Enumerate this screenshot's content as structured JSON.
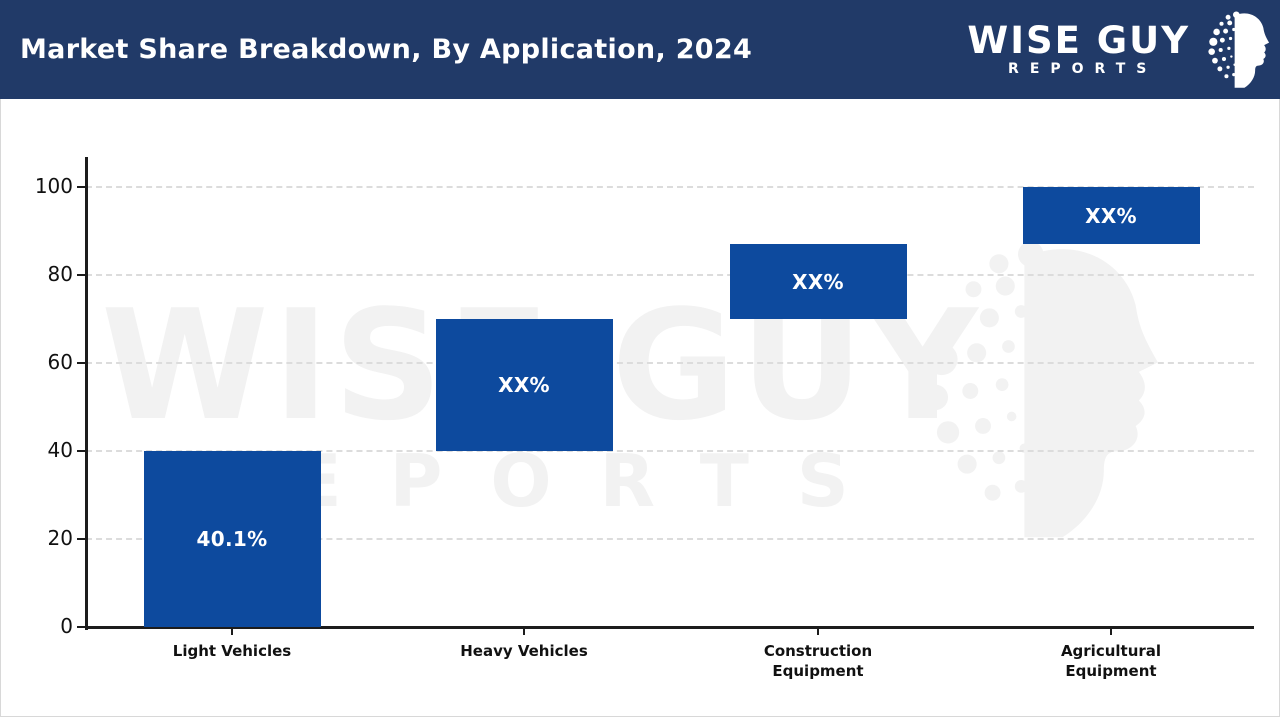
{
  "header": {
    "title": "Market Share Breakdown, By Application, 2024",
    "bg_color": "#213a68",
    "logo": {
      "line1": "WISE GUY",
      "line2": "REPORTS"
    }
  },
  "watermark": {
    "line1": "WISE GUY",
    "line2": "REPORTS",
    "color": "#f2f2f2"
  },
  "chart_data": {
    "type": "bar",
    "subtype": "waterfall",
    "title": "Market Share Breakdown, By Application, 2024",
    "categories": [
      "Light Vehicles",
      "Heavy Vehicles",
      "Construction Equipment",
      "Agricultural Equipment"
    ],
    "segments": [
      {
        "category": "Light Vehicles",
        "start": 0,
        "end": 40.1,
        "label": "40.1%"
      },
      {
        "category": "Heavy Vehicles",
        "start": 40.1,
        "end": 70,
        "label": "XX%"
      },
      {
        "category": "Construction Equipment",
        "start": 70,
        "end": 87,
        "label": "XX%"
      },
      {
        "category": "Agricultural Equipment",
        "start": 87,
        "end": 100,
        "label": "XX%"
      }
    ],
    "ylim": [
      0,
      100
    ],
    "yticks": [
      0,
      20,
      40,
      60,
      80,
      100
    ],
    "xlabel": "",
    "ylabel": "",
    "grid": "horizontal-dashed",
    "legend": "none",
    "bar_color": "#0d4a9e",
    "bar_label_color": "#ffffff",
    "axis_color": "#1c1c1c"
  }
}
